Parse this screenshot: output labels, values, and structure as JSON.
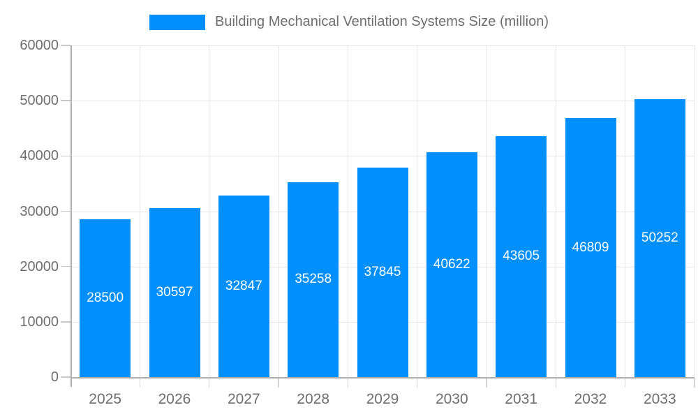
{
  "legend": {
    "label": "Building Mechanical Ventilation Systems Size (million)"
  },
  "chart_data": {
    "type": "bar",
    "title": "Building Mechanical Ventilation Systems Size (million)",
    "categories": [
      "2025",
      "2026",
      "2027",
      "2028",
      "2029",
      "2030",
      "2031",
      "2032",
      "2033"
    ],
    "values": [
      28500,
      30597,
      32847,
      35258,
      37845,
      40622,
      43605,
      46809,
      50252
    ],
    "series": [
      {
        "name": "Building Mechanical Ventilation Systems Size (million)",
        "values": [
          28500,
          30597,
          32847,
          35258,
          37845,
          40622,
          43605,
          46809,
          50252
        ]
      }
    ],
    "xlabel": "",
    "ylabel": "",
    "ylim": [
      0,
      60000
    ],
    "yticks": [
      0,
      10000,
      20000,
      30000,
      40000,
      50000,
      60000
    ],
    "grid": true,
    "legend_position": "top",
    "value_labels_inside_bars": true,
    "bar_color": "#008FFB",
    "value_label_color": "#ffffff",
    "axis_text_color": "#6f6f6f",
    "grid_color": "#e7e7e7",
    "axis_line_color": "#aeaeae"
  }
}
